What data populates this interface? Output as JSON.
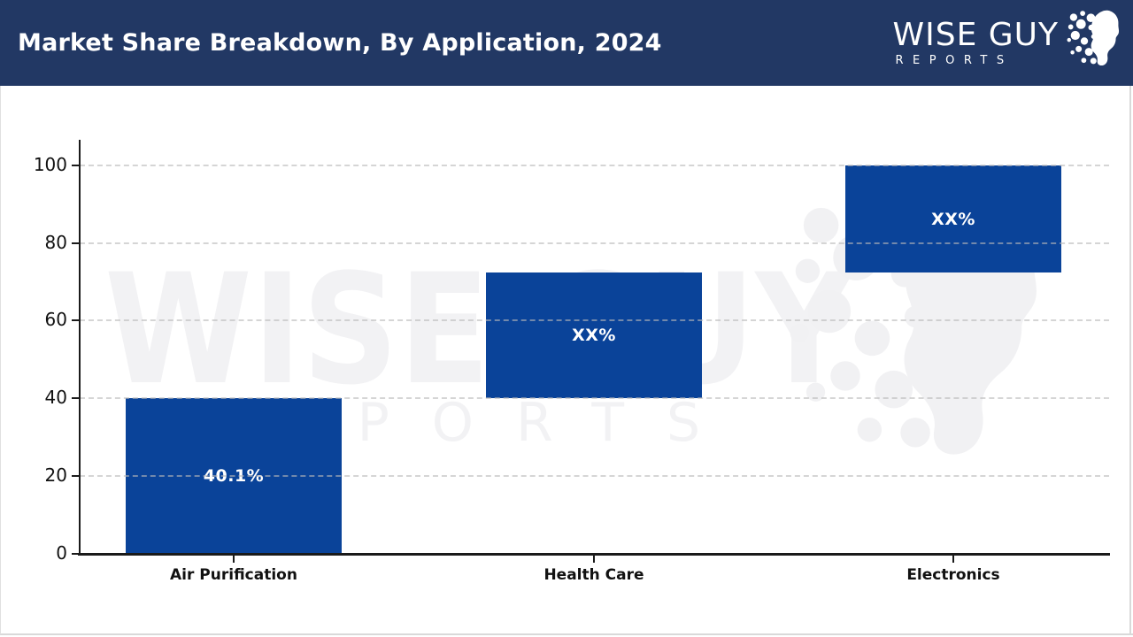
{
  "header": {
    "title": "Market Share Breakdown, By Application, 2024",
    "bg_color": "#223864",
    "logo": {
      "line1": "WISE GUY",
      "line2": "REPORTS"
    }
  },
  "watermark": {
    "line1": "WISE GUY",
    "line2": "REPORTS"
  },
  "chart_data": {
    "type": "bar",
    "subtype": "floating-segment bars (stacked breakdown, each bar starts where previous ends)",
    "title": "Market Share Breakdown, By Application, 2024",
    "categories": [
      "Air Purification",
      "Health Care",
      "Electronics"
    ],
    "bars": [
      {
        "category": "Air Purification",
        "from": 0,
        "to": 40.1,
        "label": "40.1%"
      },
      {
        "category": "Health Care",
        "from": 40.1,
        "to": 72.4,
        "label": "XX%"
      },
      {
        "category": "Electronics",
        "from": 72.4,
        "to": 100,
        "label": "XX%"
      }
    ],
    "xlabel": "",
    "ylabel": "",
    "ylim": [
      0,
      105
    ],
    "yticks_top_to_bottom": [
      "100",
      "80",
      "60",
      "40",
      "20",
      "0"
    ],
    "grid": "horizontal dashed gridlines at 20/40/60/80/100, drawn over bars",
    "legend": "none",
    "bar_color": "#0a4399",
    "gridline_color": "#dcdcdc",
    "axis_color": "#1a1a1a"
  }
}
